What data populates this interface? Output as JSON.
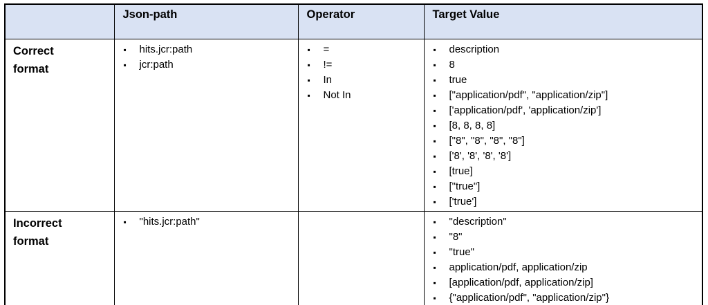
{
  "table": {
    "bullet_icon": "▪",
    "colors": {
      "header_bg": "#d9e2f3",
      "border": "#000000",
      "text": "#000000"
    },
    "columns": {
      "label": "",
      "json_path": "Json-path",
      "operator": "Operator",
      "target_value": "Target Value"
    },
    "rows": [
      {
        "label": "Correct format",
        "json_path": [
          "hits.jcr:path",
          "jcr:path"
        ],
        "operator": [
          "=",
          "!=",
          "In",
          "Not In"
        ],
        "target_value": [
          "description",
          "8",
          "true",
          "[\"application/pdf\", \"application/zip\"]",
          "['application/pdf', 'application/zip']",
          "[8, 8, 8, 8]",
          "[\"8\", \"8\", \"8\", \"8\"]",
          "['8', '8', '8', '8']",
          "[true]",
          "[\"true\"]",
          "['true']"
        ]
      },
      {
        "label": "Incorrect format",
        "json_path": [
          "\"hits.jcr:path\""
        ],
        "operator": [],
        "target_value": [
          "\"description\"",
          "\"8\"",
          "\"true\"",
          "application/pdf, application/zip",
          "[application/pdf, application/zip]",
          "{\"application/pdf\", \"application/zip\"}"
        ]
      }
    ]
  }
}
